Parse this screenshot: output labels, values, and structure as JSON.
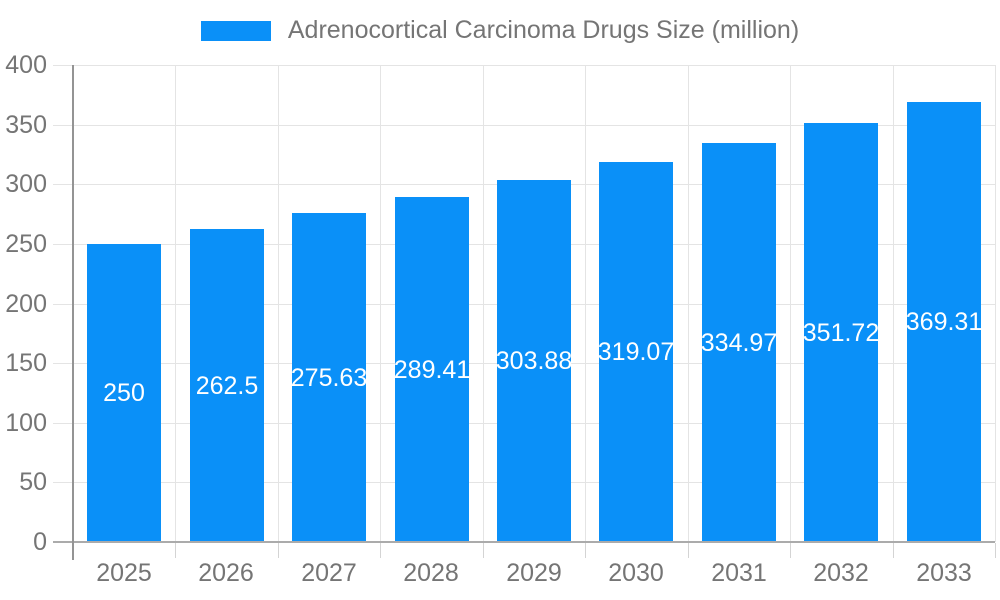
{
  "legend": {
    "label": "Adrenocortical Carcinoma Drugs Size (million)"
  },
  "chart_data": {
    "type": "bar",
    "title": "Adrenocortical Carcinoma Drugs Size (million)",
    "categories": [
      "2025",
      "2026",
      "2027",
      "2028",
      "2029",
      "2030",
      "2031",
      "2032",
      "2033"
    ],
    "values": [
      250,
      262.5,
      275.63,
      289.41,
      303.88,
      319.07,
      334.97,
      351.72,
      369.31
    ],
    "bar_labels": [
      "250",
      "262.5",
      "275.63",
      "289.41",
      "303.88",
      "319.07",
      "334.97",
      "351.72",
      "369.31"
    ],
    "xlabel": "",
    "ylabel": "",
    "ylim": [
      0,
      400
    ],
    "ytick_step": 50,
    "ytick_labels": [
      "0",
      "50",
      "100",
      "150",
      "200",
      "250",
      "300",
      "350",
      "400"
    ],
    "grid": true,
    "legend_position": "top",
    "colors": {
      "bar": "#0A90F8",
      "axis_text": "#757575",
      "bar_label": "#FFFFFF",
      "gridline": "#E4E4E4",
      "axis_line": "#9A9A9A"
    }
  }
}
